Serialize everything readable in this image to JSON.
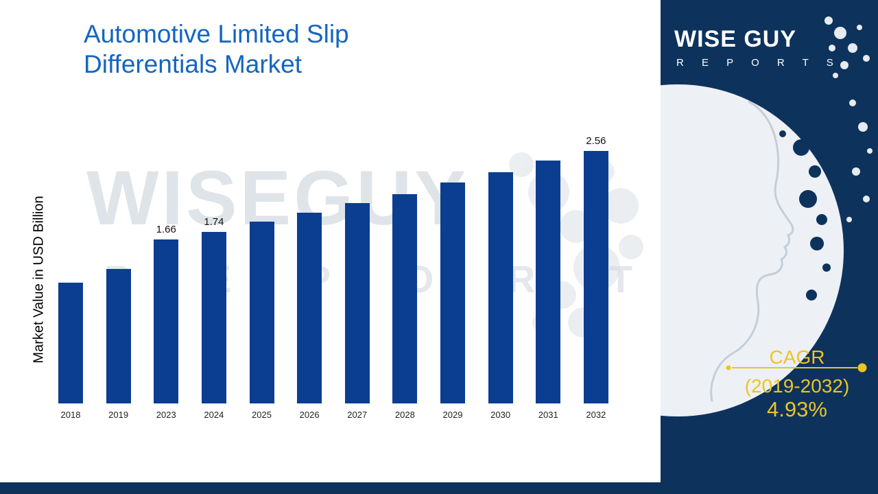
{
  "title": "Automotive Limited Slip Differentials Market",
  "watermark": {
    "line1": "WISEGUY",
    "line2": "R E P O R T S"
  },
  "logo": {
    "line1": "WISE GUY",
    "line2": "R E P O R T S"
  },
  "cagr": {
    "label": "CAGR",
    "range": "(2019-2032)",
    "value": "4.93%"
  },
  "colors": {
    "bar": "#0b3d91",
    "title": "#1565c0",
    "panel": "#0d335d",
    "accent": "#ecc424",
    "watermark": "#9fb0bd"
  },
  "chart_data": {
    "type": "bar",
    "categories": [
      "2018",
      "2019",
      "2023",
      "2024",
      "2025",
      "2026",
      "2027",
      "2028",
      "2029",
      "2030",
      "2031",
      "2032"
    ],
    "values": [
      1.22,
      1.36,
      1.66,
      1.74,
      1.84,
      1.93,
      2.03,
      2.12,
      2.24,
      2.34,
      2.46,
      2.56
    ],
    "value_labels": [
      "",
      "",
      "1.66",
      "1.74",
      "",
      "",
      "",
      "",
      "",
      "",
      "",
      "2.56"
    ],
    "title": "Automotive Limited Slip Differentials Market",
    "xlabel": "",
    "ylabel": "Market Value in USD Billion",
    "ylim": [
      0,
      2.8
    ],
    "grid": false,
    "legend": false
  }
}
